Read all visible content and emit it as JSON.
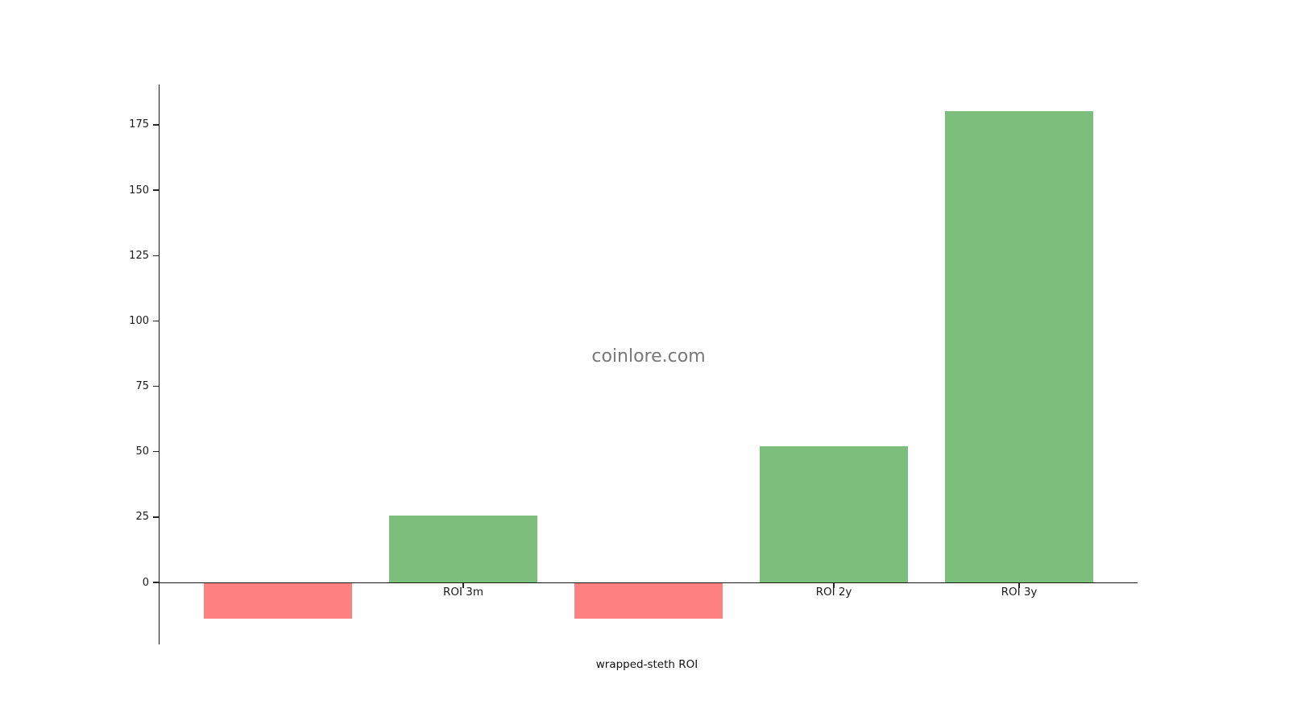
{
  "chart_data": {
    "type": "bar",
    "title": "",
    "xlabel": "wrapped-steth ROI",
    "ylabel": "",
    "watermark": "coinlore.com",
    "categories": [
      "",
      "ROI 3m",
      "",
      "ROI 2y",
      "ROI 3y"
    ],
    "values": [
      -13.9,
      25.7,
      -14.0,
      52.0,
      180.3
    ],
    "bar_colors": [
      "#ff8080",
      "#7cbe7c",
      "#ff8080",
      "#7cbe7c",
      "#7cbe7c"
    ],
    "positive_color": "#7cbe7c",
    "negative_color": "#ff8080",
    "yticks": [
      0,
      25,
      50,
      75,
      100,
      125,
      150,
      175
    ],
    "ylim": [
      -23.6,
      190.5
    ],
    "grid": false,
    "legend_position": "none",
    "axis_color": "#1a1a1a"
  }
}
